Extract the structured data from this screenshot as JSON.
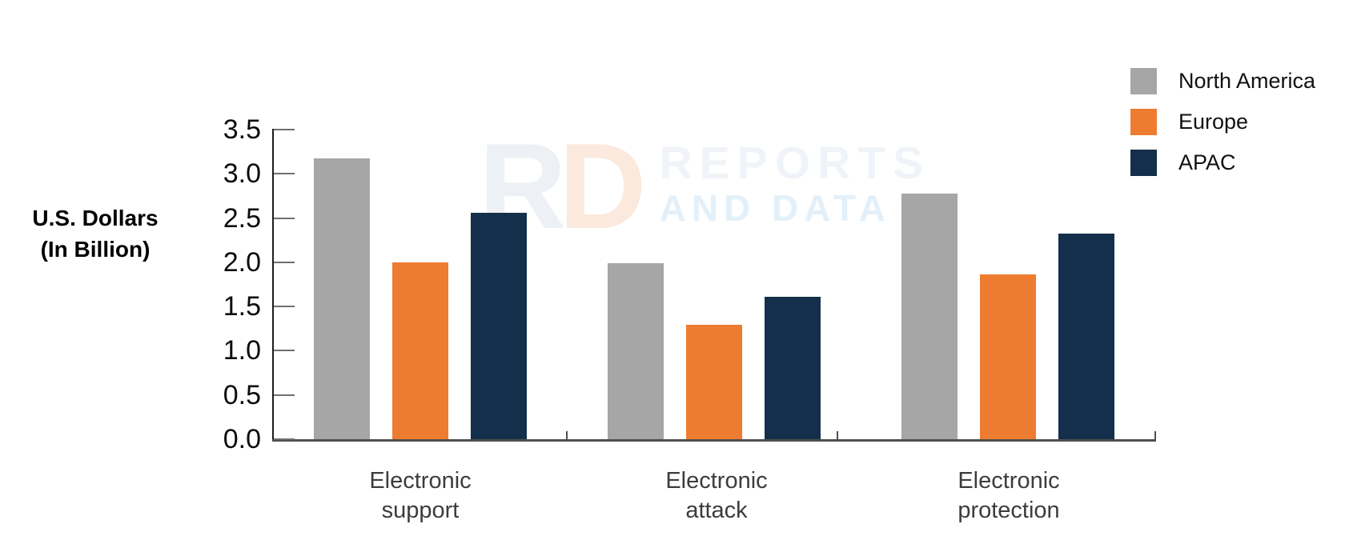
{
  "watermark": {
    "logo_letter_r": "R",
    "logo_letter_d": "D",
    "text_line1": "REPORTS",
    "text_line2": "AND DATA"
  },
  "y_axis_title": {
    "line1": "U.S. Dollars",
    "line2": "(In Billion)"
  },
  "legend": {
    "items": [
      {
        "label": "North America",
        "color": "#a6a6a6"
      },
      {
        "label": "Europe",
        "color": "#ed7c31"
      },
      {
        "label": "APAC",
        "color": "#142f4b"
      }
    ]
  },
  "chart_data": {
    "type": "bar",
    "title": "",
    "ylabel": "U.S. Dollars (In Billion)",
    "xlabel": "",
    "categories": [
      "Electronic support",
      "Electronic attack",
      "Electronic protection"
    ],
    "category_label_lines": [
      [
        "Electronic",
        "support"
      ],
      [
        "Electronic",
        "attack"
      ],
      [
        "Electronic",
        "protection"
      ]
    ],
    "series": [
      {
        "name": "North America",
        "color": "#a6a6a6",
        "values": [
          3.17,
          1.99,
          2.78
        ]
      },
      {
        "name": "Europe",
        "color": "#ed7c31",
        "values": [
          2.0,
          1.29,
          1.86
        ]
      },
      {
        "name": "APAC",
        "color": "#142f4b",
        "values": [
          2.56,
          1.61,
          2.32
        ]
      }
    ],
    "ylim": [
      0.0,
      3.5
    ],
    "ytick_step": 0.5,
    "ytick_labels": [
      "0.0",
      "0.5",
      "1.0",
      "1.5",
      "2.0",
      "2.5",
      "3.0",
      "3.5"
    ],
    "grid": false,
    "legend_position": "top-right"
  }
}
